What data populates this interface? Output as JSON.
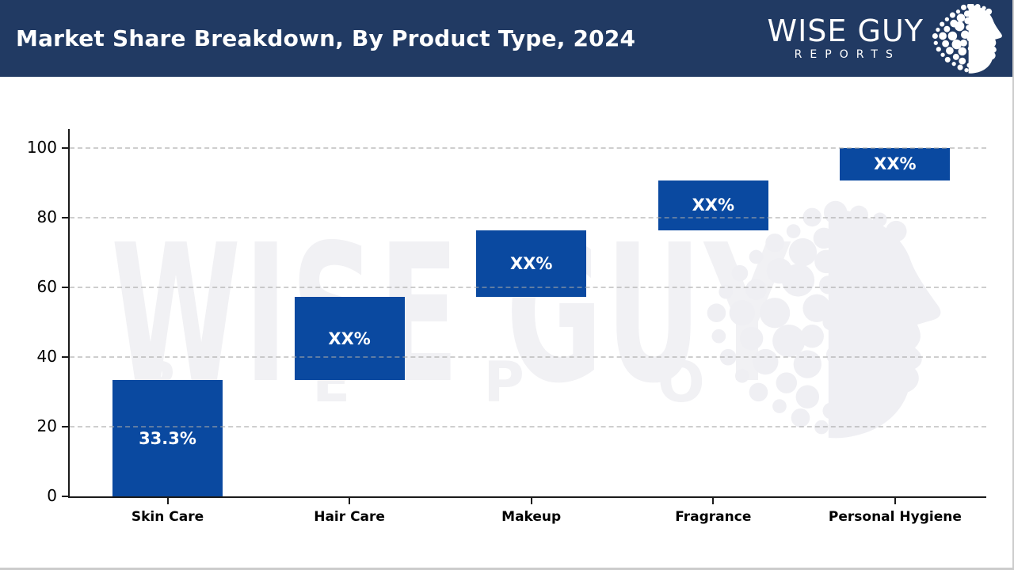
{
  "header": {
    "title": "Market Share Breakdown, By Product Type, 2024",
    "logo": {
      "line1": "WISE GUY",
      "line2": "REPORTS"
    }
  },
  "watermark": {
    "line1": "WISE GUY",
    "line2": "R E P O R T S"
  },
  "colors": {
    "header_bg": "#213a63",
    "bar": "#0a49a0",
    "bar_label": "#ffffff",
    "axis": "#1a1a1a",
    "gridline": "#c9c9c9",
    "watermark": "#f1f1f4",
    "border": "#cccccc"
  },
  "chart_data": {
    "type": "bar",
    "subtype": "waterfall",
    "title": "Market Share Breakdown, By Product Type, 2024",
    "categories": [
      "Skin Care",
      "Hair Care",
      "Makeup",
      "Fragrance",
      "Personal Hygiene"
    ],
    "segments": [
      {
        "category": "Skin Care",
        "start": 0,
        "end": 33.3,
        "label": "33.3%"
      },
      {
        "category": "Hair Care",
        "start": 33.3,
        "end": 57.3,
        "label": "XX%"
      },
      {
        "category": "Makeup",
        "start": 57.3,
        "end": 76.4,
        "label": "XX%"
      },
      {
        "category": "Fragrance",
        "start": 76.4,
        "end": 90.7,
        "label": "XX%"
      },
      {
        "category": "Personal Hygiene",
        "start": 90.7,
        "end": 100,
        "label": "XX%"
      }
    ],
    "xlabel": "",
    "ylabel": "",
    "yticks": [
      0,
      20,
      40,
      60,
      80,
      100
    ],
    "ylim": [
      0,
      105.5
    ],
    "grid": "horizontal-dashed-above-bars",
    "legend": "none"
  }
}
